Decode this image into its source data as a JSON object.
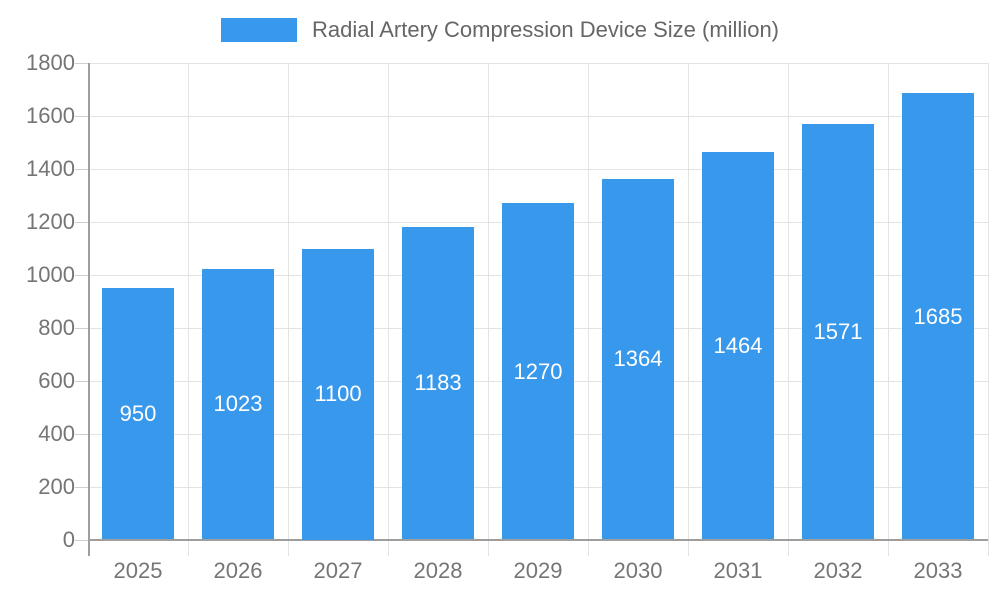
{
  "legend": {
    "label": "Radial Artery Compression Device Size (million)"
  },
  "chart_data": {
    "type": "bar",
    "title": "Radial Artery Compression Device Size (million)",
    "categories": [
      "2025",
      "2026",
      "2027",
      "2028",
      "2029",
      "2030",
      "2031",
      "2032",
      "2033"
    ],
    "values": [
      950,
      1023,
      1100,
      1183,
      1270,
      1364,
      1464,
      1571,
      1685
    ],
    "value_labels": [
      "950",
      "1023",
      "1100",
      "1183",
      "1270",
      "1364",
      "1464",
      "1571",
      "1685"
    ],
    "xlabel": "",
    "ylabel": "",
    "ylim": [
      0,
      1800
    ],
    "ytick_step": 200,
    "yticks": [
      0,
      200,
      400,
      600,
      800,
      1000,
      1200,
      1400,
      1600,
      1800
    ],
    "grid": true,
    "legend_position": "top",
    "value_label_position": "center-inside",
    "colors": {
      "bar": "#3898EC",
      "grid": "#E3E3E3",
      "axis": "#9E9E9E",
      "tick": "#CFCFCF",
      "axis_text": "#757575",
      "legend_text": "#666666",
      "value_text": "#FFFFFF",
      "background": "#FFFFFF"
    }
  }
}
